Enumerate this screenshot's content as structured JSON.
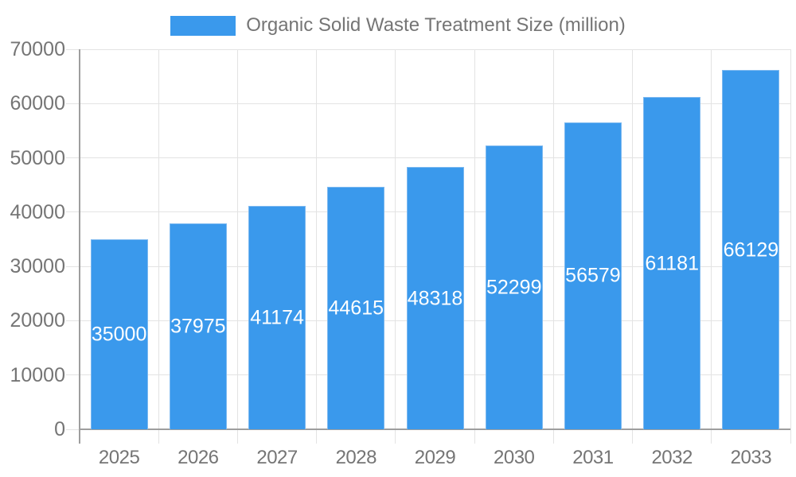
{
  "chart_data": {
    "type": "bar",
    "title": "",
    "legend": {
      "label": "Organic Solid Waste Treatment Size (million)",
      "position": "top"
    },
    "categories": [
      "2025",
      "2026",
      "2027",
      "2028",
      "2029",
      "2030",
      "2031",
      "2032",
      "2033"
    ],
    "series": [
      {
        "name": "Organic Solid Waste Treatment Size (million)",
        "values": [
          35000,
          37975,
          41174,
          44615,
          48318,
          52299,
          56579,
          61181,
          66129
        ]
      }
    ],
    "value_labels_shown": true,
    "xlabel": "",
    "ylabel": "",
    "ylim": [
      0,
      70000
    ],
    "y_ticks": [
      0,
      10000,
      20000,
      30000,
      40000,
      50000,
      60000,
      70000
    ],
    "grid": true,
    "legend_position": "top",
    "colors": {
      "bar_fill": "#3A99EC",
      "bar_edge": "#7DB9F0",
      "value_label_text": "#ffffff",
      "axis_text": "#757575",
      "legend_text": "#757575",
      "gridline": "#e3e3e3",
      "axis_line": "#9e9e9e",
      "background": "#ffffff"
    }
  }
}
